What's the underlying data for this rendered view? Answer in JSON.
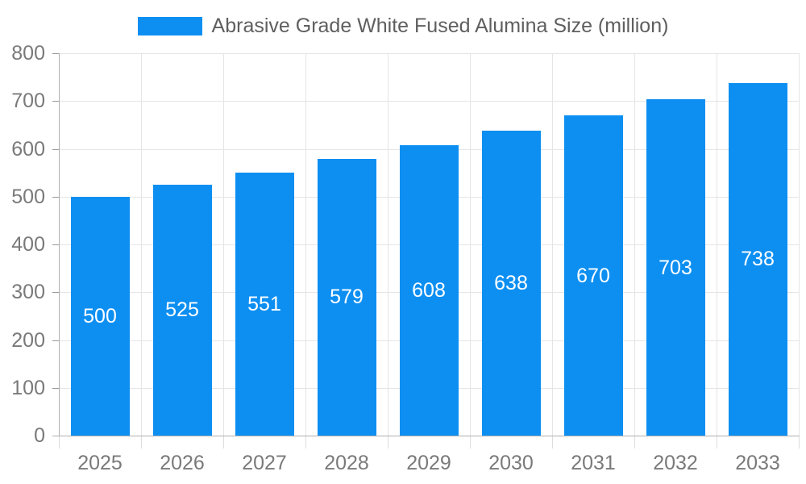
{
  "legend": {
    "label": "Abrasive Grade White Fused Alumina Size (million)",
    "swatch_color": "#0D8FF2"
  },
  "colors": {
    "bar": "#0D8FF2",
    "bar_label": "#FFFFFF",
    "axis_line": "#B0B0B0",
    "grid_line": "#E5E5E5",
    "y_tick": "#999999",
    "x_tick": "#DDDDDD",
    "axis_label_text": "#7A7A7A",
    "legend_text": "#5F5F5F",
    "background": "#FFFFFF"
  },
  "chart_data": {
    "type": "bar",
    "title": "Abrasive Grade White Fused Alumina Size (million)",
    "categories": [
      "2025",
      "2026",
      "2027",
      "2028",
      "2029",
      "2030",
      "2031",
      "2032",
      "2033"
    ],
    "values": [
      500,
      525,
      551,
      579,
      608,
      638,
      670,
      703,
      738
    ],
    "xlabel": "",
    "ylabel": "",
    "ylim": [
      0,
      800
    ],
    "yticks": [
      0,
      100,
      200,
      300,
      400,
      500,
      600,
      700,
      800
    ],
    "grid": true,
    "legend_position": "top-center",
    "value_label_position": "inside-center"
  }
}
